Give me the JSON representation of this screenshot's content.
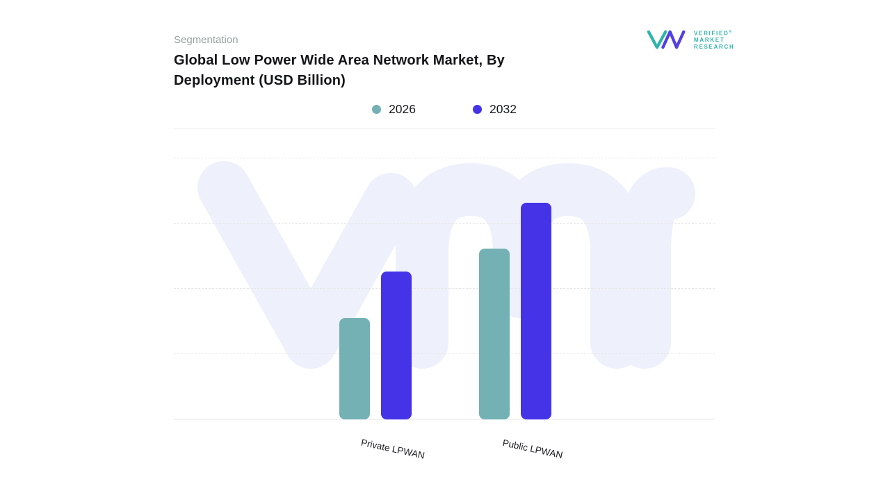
{
  "header": {
    "eyebrow": "Segmentation",
    "title_line1": "Global Low Power Wide Area Network Market, By",
    "title_line2": "Deployment (USD Billion)"
  },
  "brand": {
    "name_lines": [
      "VERIFIED",
      "MARKET",
      "RESEARCH"
    ],
    "registered_mark": "®",
    "teal": "#2eb4ab",
    "purple": "#5240e3"
  },
  "legend": [
    {
      "label": "2026",
      "color": "#73b1b4"
    },
    {
      "label": "2032",
      "color": "#4533e8"
    }
  ],
  "watermark": {
    "text": "vmr",
    "color": "#eef0fb"
  },
  "chart_data": {
    "type": "bar",
    "title": "Global Low Power Wide Area Network Market, By Deployment (USD Billion)",
    "categories": [
      "Private LPWAN",
      "Public LPWAN"
    ],
    "series": [
      {
        "name": "2026",
        "color": "#73b1b4",
        "values": [
          1.55,
          2.6
        ]
      },
      {
        "name": "2032",
        "color": "#4533e8",
        "values": [
          2.25,
          3.3
        ]
      }
    ],
    "xlabel": "",
    "ylabel": "",
    "ylim": [
      0,
      4
    ],
    "y_axis_labels_visible": false,
    "grid": "horizontal-dashed",
    "legend_position": "top"
  }
}
